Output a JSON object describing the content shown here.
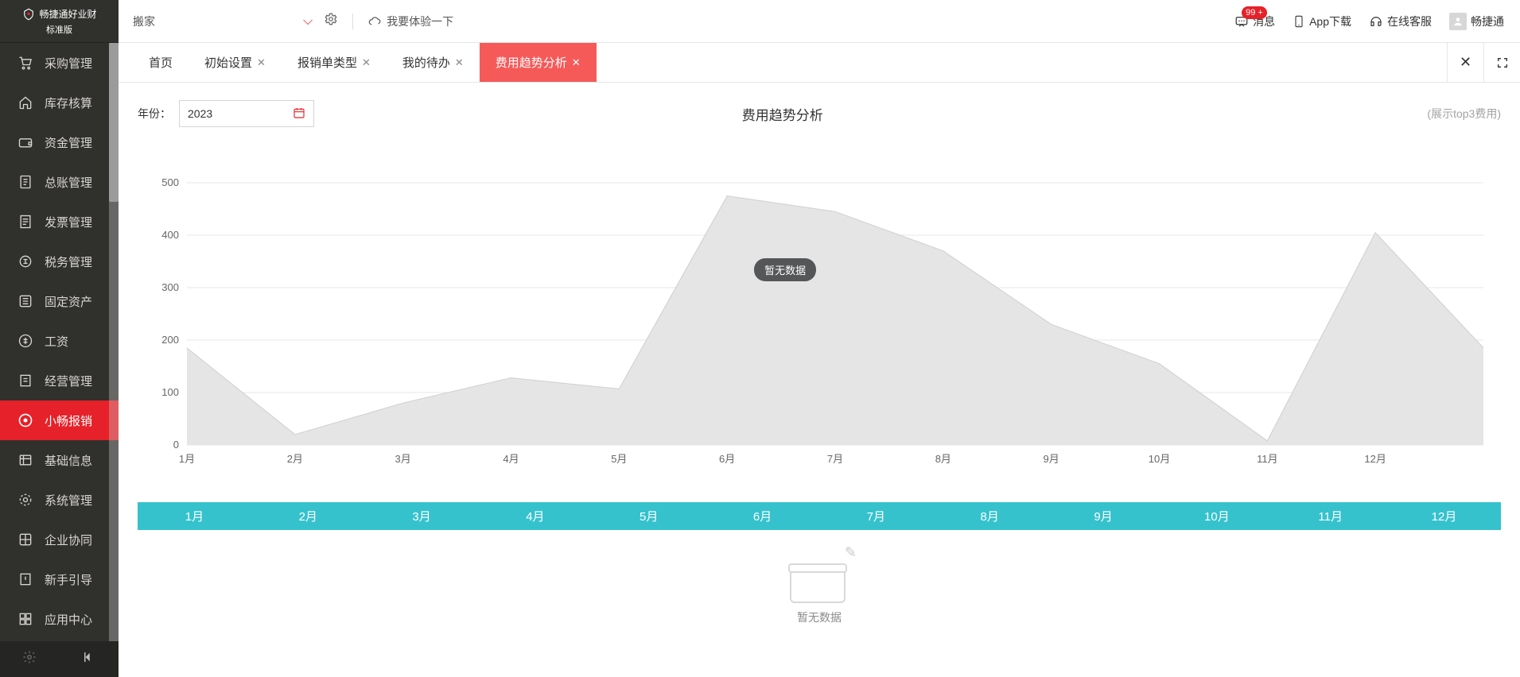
{
  "brand": {
    "name": "畅捷通好业财",
    "edition": "标准版"
  },
  "nav": {
    "items": [
      {
        "icon": "cart",
        "label": "采购管理"
      },
      {
        "icon": "home",
        "label": "库存核算"
      },
      {
        "icon": "wallet",
        "label": "资金管理"
      },
      {
        "icon": "ledger",
        "label": "总账管理"
      },
      {
        "icon": "invoice",
        "label": "发票管理"
      },
      {
        "icon": "tax",
        "label": "税务管理"
      },
      {
        "icon": "asset",
        "label": "固定资产"
      },
      {
        "icon": "salary",
        "label": "工资"
      },
      {
        "icon": "biz",
        "label": "经营管理"
      },
      {
        "icon": "expense",
        "label": "小畅报销",
        "active": true
      },
      {
        "icon": "base",
        "label": "基础信息"
      },
      {
        "icon": "sys",
        "label": "系统管理"
      },
      {
        "icon": "collab",
        "label": "企业协同"
      },
      {
        "icon": "guide",
        "label": "新手引导"
      },
      {
        "icon": "appctr",
        "label": "应用中心"
      }
    ]
  },
  "topbar": {
    "search_text": "搬家",
    "try_text": "我要体验一下",
    "msg": "消息",
    "msg_badge": "99 +",
    "app": "App下载",
    "service": "在线客服",
    "user": "畅捷通"
  },
  "tabs": {
    "list": [
      {
        "label": "首页",
        "closable": false
      },
      {
        "label": "初始设置",
        "closable": true
      },
      {
        "label": "报销单类型",
        "closable": true
      },
      {
        "label": "我的待办",
        "closable": true
      },
      {
        "label": "费用趋势分析",
        "closable": true,
        "active": true
      }
    ]
  },
  "filter": {
    "label": "年份：",
    "value": "2023"
  },
  "chart": {
    "title": "费用趋势分析",
    "subtitle": "(展示top3费用)",
    "type": "area",
    "x_labels": [
      "1月",
      "2月",
      "3月",
      "4月",
      "5月",
      "6月",
      "7月",
      "8月",
      "9月",
      "10月",
      "11月",
      "12月"
    ],
    "y_ticks": [
      0,
      100,
      200,
      300,
      400,
      500
    ],
    "ylim": [
      0,
      500
    ],
    "ytick_step": 100,
    "series": [
      {
        "name": "费用",
        "color": "#e5e5e5",
        "stroke": "#cfcfcf",
        "values": [
          185,
          20,
          80,
          128,
          107,
          475,
          445,
          370,
          230,
          155,
          8,
          405,
          185
        ]
      }
    ],
    "grid_color": "#e7e7e7",
    "axis_color": "#888",
    "bg": "#ffffff",
    "tick_font_size": 13,
    "tick_color": "#666",
    "tooltip_text": "暂无数据",
    "tooltip_bg": "#545658",
    "tooltip_color": "#ffffff",
    "selector_bg": "#35c2cd",
    "selector_color": "#ffffff",
    "selector_labels": [
      "1月",
      "2月",
      "3月",
      "4月",
      "5月",
      "6月",
      "7月",
      "8月",
      "9月",
      "10月",
      "11月",
      "12月"
    ]
  },
  "nodata": {
    "text": "暂无数据"
  }
}
